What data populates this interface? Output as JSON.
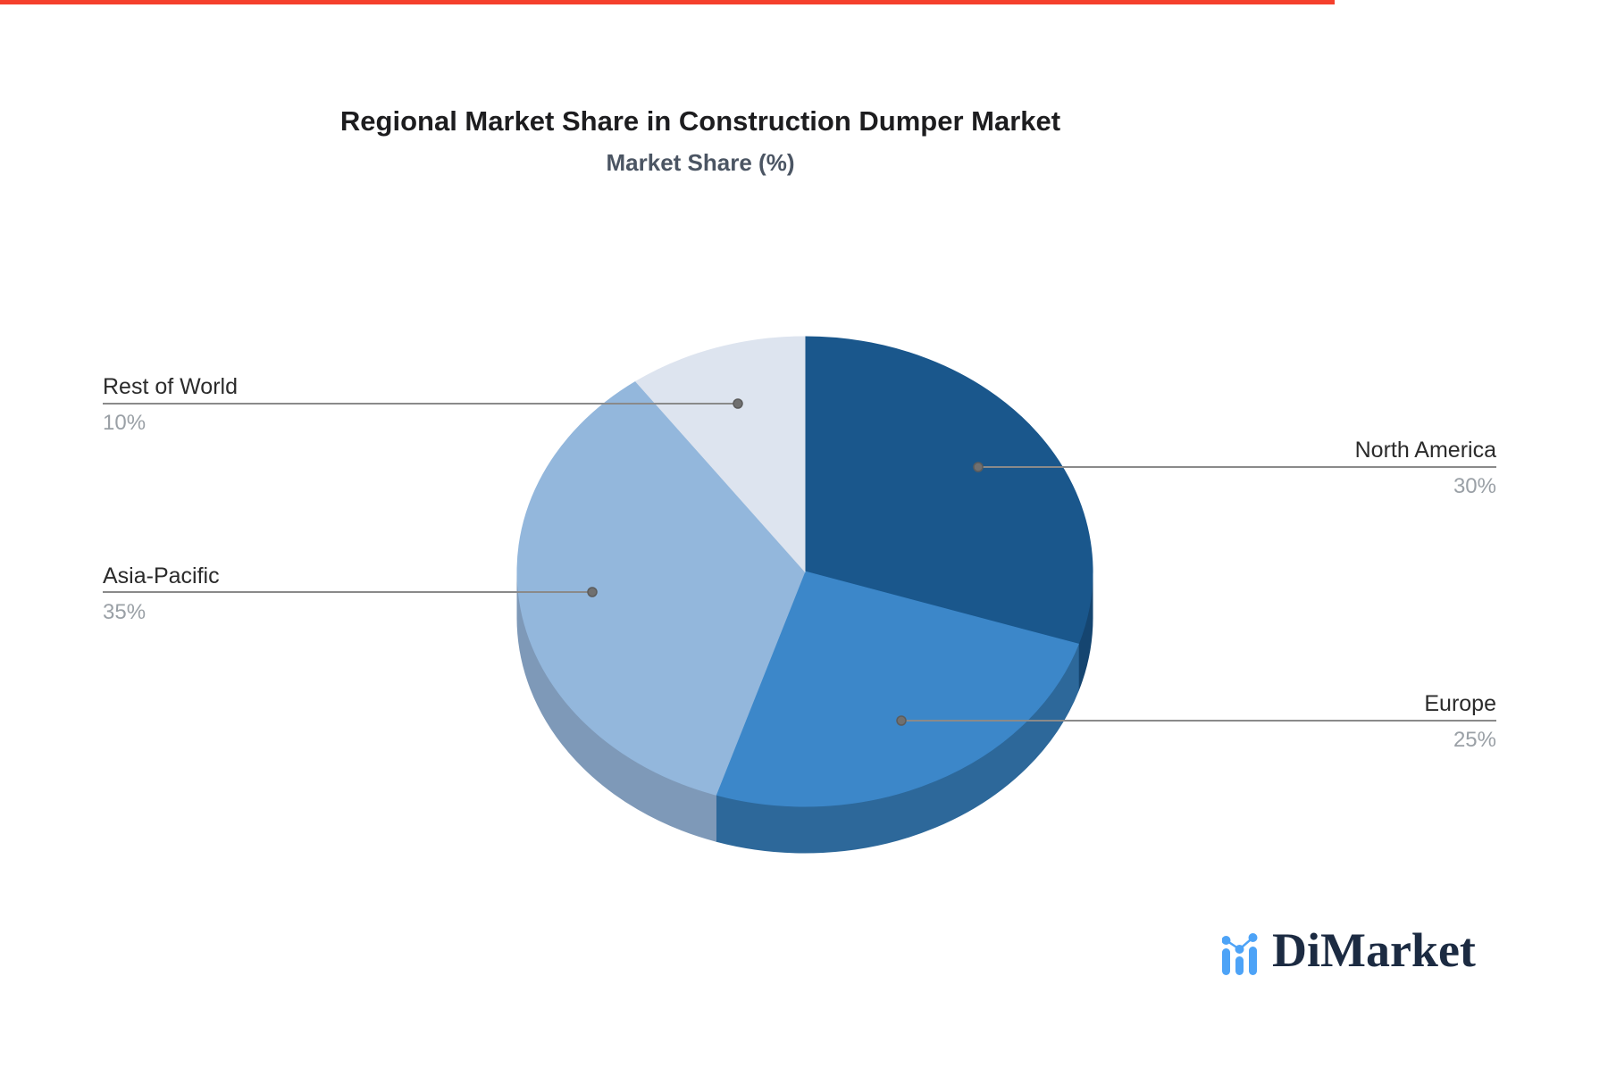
{
  "page": {
    "top_strip_color": "#f5402c",
    "background_color": "#ffffff"
  },
  "chart_data": {
    "type": "pie",
    "style": "3d-pie",
    "title": "Regional Market Share in Construction Dumper Market",
    "subtitle": "Market Share (%)",
    "unit": "%",
    "direction": "clockwise",
    "start_angle_deg": 0,
    "legend": "none",
    "leader_line_color": "#8a8a8a",
    "label_text_color": "#2b2b2b",
    "value_text_color": "#9aa0a6",
    "slices": [
      {
        "name": "North America",
        "value": 30,
        "pct_label": "30%",
        "color": "#1a578c",
        "side_color": "#154570",
        "label_side": "right"
      },
      {
        "name": "Europe",
        "value": 25,
        "pct_label": "25%",
        "color": "#3c87c9",
        "side_color": "#2d689a",
        "label_side": "right"
      },
      {
        "name": "Asia-Pacific",
        "value": 35,
        "pct_label": "35%",
        "color": "#93b7dc",
        "side_color": "#7e99b8",
        "label_side": "left"
      },
      {
        "name": "Rest of World",
        "value": 10,
        "pct_label": "10%",
        "color": "#dde4ef",
        "side_color": "#c6cedd",
        "label_side": "left"
      }
    ]
  },
  "footer": {
    "brand": "DiMarket",
    "brand_color": "#1c2b42",
    "icon": "bar-chart-trend-icon",
    "icon_color": "#4da3f7"
  }
}
